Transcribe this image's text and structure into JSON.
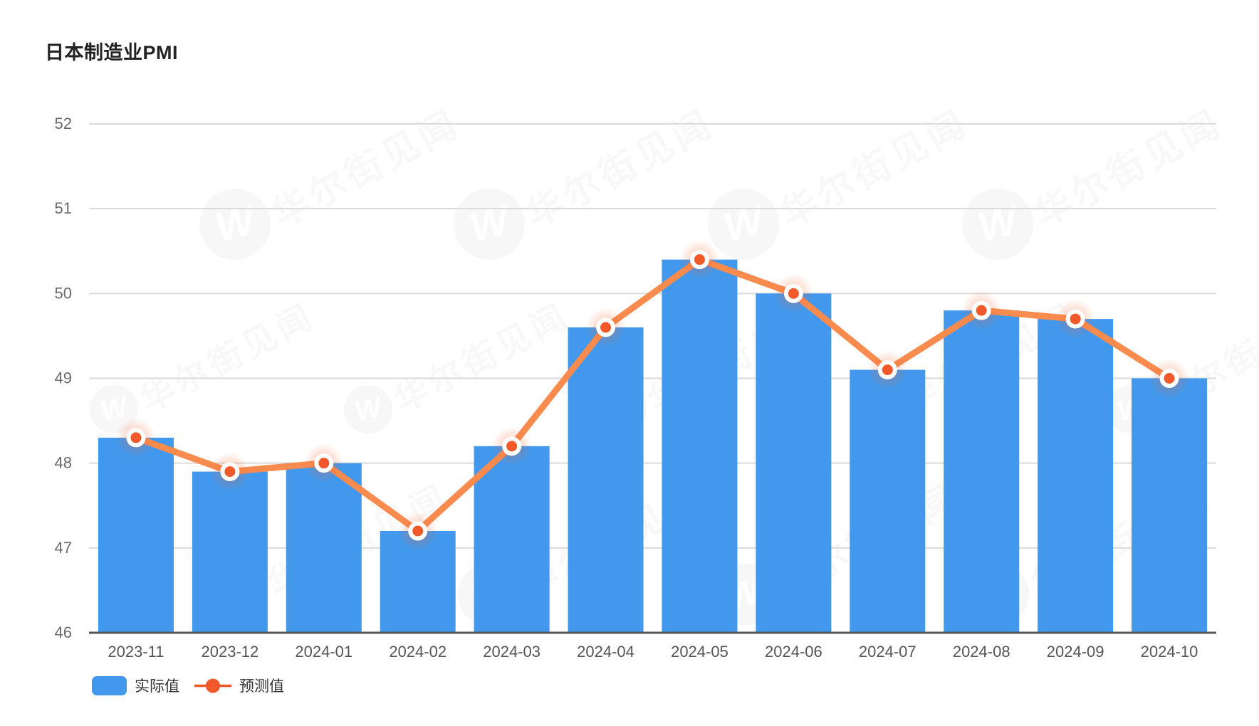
{
  "title": "日本制造业PMI",
  "watermark": {
    "text": "华尔街见闻",
    "logo_letter": "W"
  },
  "axis": {
    "y_tick_labels": [
      "46",
      "47",
      "48",
      "49",
      "50",
      "51",
      "52"
    ]
  },
  "chart_data": {
    "type": "bar",
    "title": "日本制造业PMI",
    "categories": [
      "2023-11",
      "2023-12",
      "2024-01",
      "2024-02",
      "2024-03",
      "2024-04",
      "2024-05",
      "2024-06",
      "2024-07",
      "2024-08",
      "2024-09",
      "2024-10"
    ],
    "series": [
      {
        "name": "实际值",
        "type": "bar",
        "color": "#4298EC",
        "values": [
          48.3,
          47.9,
          48.0,
          47.2,
          48.2,
          49.6,
          50.4,
          50.0,
          49.1,
          49.8,
          49.7,
          49.0
        ]
      },
      {
        "name": "预测值",
        "type": "line",
        "color": "#F98B4F",
        "point_color": "#F1592A",
        "values": [
          48.3,
          47.9,
          48.0,
          47.2,
          48.2,
          49.6,
          50.4,
          50.0,
          49.1,
          49.8,
          49.7,
          49.0
        ]
      }
    ],
    "ylim": [
      46,
      52
    ],
    "yticks": [
      46,
      47,
      48,
      49,
      50,
      51,
      52
    ],
    "xlabel": "",
    "ylabel": "",
    "grid": true,
    "legend_position": "bottom-left",
    "colors": {
      "gridline": "#DADADA",
      "axis_line": "#565656",
      "y_tick_text": "#6A6A6A",
      "x_tick_text": "#555555",
      "halo": "#F2602A"
    }
  }
}
